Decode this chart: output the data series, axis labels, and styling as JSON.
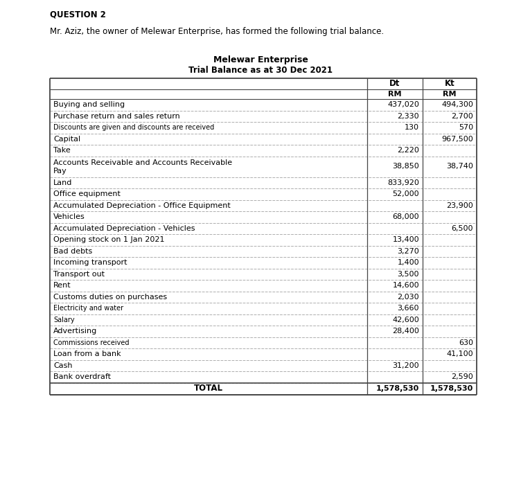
{
  "question_label": "QUESTION 2",
  "intro_text": "Mr. Aziz, the owner of Melewar Enterprise, has formed the following trial balance.",
  "company_name": "Melewar Enterprise",
  "table_title": "Trial Balance as at 30 Dec 2021",
  "rows": [
    {
      "label": "Buying and selling",
      "dt": "437,020",
      "kt": "494,300",
      "fs": 8.0,
      "bold": false
    },
    {
      "label": "Purchase return and sales return",
      "dt": "2,330",
      "kt": "2,700",
      "fs": 8.0,
      "bold": false
    },
    {
      "label": "Discounts are given and discounts are received",
      "dt": "130",
      "kt": "570",
      "fs": 7.0,
      "bold": false
    },
    {
      "label": "Capital",
      "dt": "",
      "kt": "967,500",
      "fs": 8.0,
      "bold": false
    },
    {
      "label": "Take",
      "dt": "2,220",
      "kt": "",
      "fs": 8.0,
      "bold": false
    },
    {
      "label": "Accounts Receivable and Accounts Receivable\nPay",
      "dt": "38,850",
      "kt": "38,740",
      "fs": 8.0,
      "bold": false,
      "multiline": true
    },
    {
      "label": "Land",
      "dt": "833,920",
      "kt": "",
      "fs": 8.0,
      "bold": false
    },
    {
      "label": "Office equipment",
      "dt": "52,000",
      "kt": "",
      "fs": 8.0,
      "bold": false
    },
    {
      "label": "Accumulated Depreciation - Office Equipment",
      "dt": "",
      "kt": "23,900",
      "fs": 8.0,
      "bold": false
    },
    {
      "label": "Vehicles",
      "dt": "68,000",
      "kt": "",
      "fs": 8.0,
      "bold": false
    },
    {
      "label": "Accumulated Depreciation - Vehicles",
      "dt": "",
      "kt": "6,500",
      "fs": 8.0,
      "bold": false
    },
    {
      "label": "Opening stock on 1 Jan 2021",
      "dt": "13,400",
      "kt": "",
      "fs": 8.0,
      "bold": false
    },
    {
      "label": "Bad debts",
      "dt": "3,270",
      "kt": "",
      "fs": 8.0,
      "bold": false
    },
    {
      "label": "Incoming transport",
      "dt": "1,400",
      "kt": "",
      "fs": 8.0,
      "bold": false
    },
    {
      "label": "Transport out",
      "dt": "3,500",
      "kt": "",
      "fs": 8.0,
      "bold": false
    },
    {
      "label": "Rent",
      "dt": "14,600",
      "kt": "",
      "fs": 8.0,
      "bold": false
    },
    {
      "label": "Customs duties on purchases",
      "dt": "2,030",
      "kt": "",
      "fs": 8.0,
      "bold": false
    },
    {
      "label": "Electricity and water",
      "dt": "3,660",
      "kt": "",
      "fs": 7.0,
      "bold": false
    },
    {
      "label": "Salary",
      "dt": "42,600",
      "kt": "",
      "fs": 7.0,
      "bold": false
    },
    {
      "label": "Advertising",
      "dt": "28,400",
      "kt": "",
      "fs": 8.0,
      "bold": false
    },
    {
      "label": "Commissions received",
      "dt": "",
      "kt": "630",
      "fs": 7.0,
      "bold": false
    },
    {
      "label": "Loan from a bank",
      "dt": "",
      "kt": "41,100",
      "fs": 8.0,
      "bold": false
    },
    {
      "label": "Cash",
      "dt": "31,200",
      "kt": "",
      "fs": 8.0,
      "bold": false
    },
    {
      "label": "Bank overdraft",
      "dt": "",
      "kt": "2,590",
      "fs": 8.0,
      "bold": false
    }
  ],
  "total_label": "TOTAL",
  "total_dt": "1,578,530",
  "total_kt": "1,578,530",
  "bg_color": "#ffffff",
  "label_color": "#000000",
  "value_color": "#000000",
  "line_color": "#444444",
  "dash_color": "#999999",
  "header_text_color": "#000000"
}
